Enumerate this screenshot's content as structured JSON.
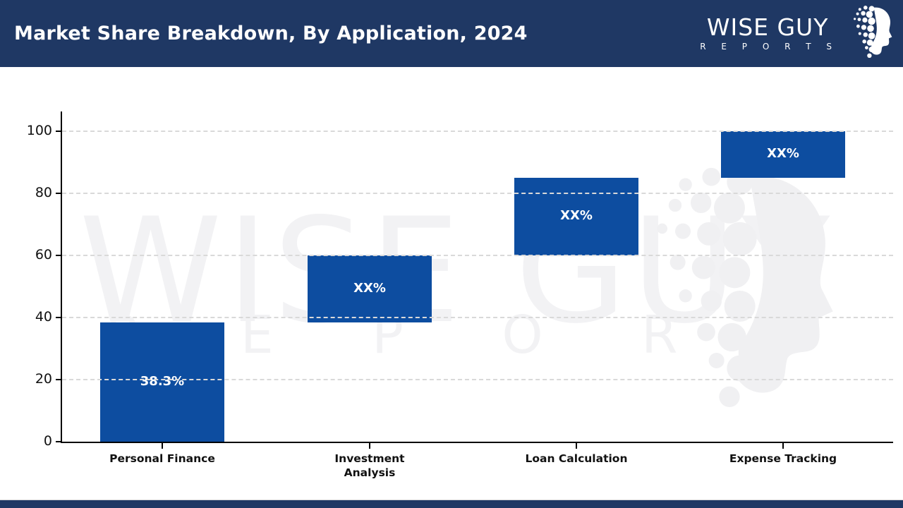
{
  "header": {
    "title": "Market Share Breakdown, By Application, 2024",
    "logo_line1": "WISE GUY",
    "logo_line2": "R E P O R T S"
  },
  "watermark": {
    "line1": "WISE GUY",
    "line2": "R E P O R T S"
  },
  "chart_data": {
    "type": "bar",
    "subtype": "floating-waterfall",
    "title": "Market Share Breakdown, By Application, 2024",
    "categories": [
      "Personal Finance",
      "Investment\nAnalysis",
      "Loan Calculation",
      "Expense Tracking"
    ],
    "bars": [
      {
        "category": "Personal Finance",
        "start": 0,
        "end": 38.3,
        "label": "38.3%"
      },
      {
        "category": "Investment\nAnalysis",
        "start": 38.3,
        "end": 60,
        "label": "XX%"
      },
      {
        "category": "Loan Calculation",
        "start": 60,
        "end": 85,
        "label": "XX%"
      },
      {
        "category": "Expense Tracking",
        "start": 85,
        "end": 100,
        "label": "XX%"
      }
    ],
    "yticks": [
      0,
      20,
      40,
      60,
      80,
      100
    ],
    "ylim": [
      0,
      105
    ],
    "grid": true,
    "legend": false,
    "bar_color": "#0D4DA0",
    "grid_color": "#d9d9d9",
    "axis_color": "#000000"
  },
  "colors": {
    "header_bg": "#1F3864",
    "bar": "#0D4DA0",
    "watermark": "#f2f2f4"
  }
}
